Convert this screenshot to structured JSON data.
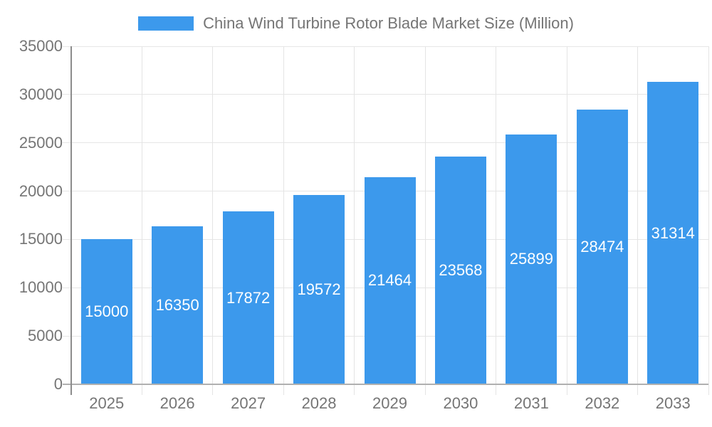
{
  "chart_data": {
    "type": "bar",
    "title": "China Wind Turbine Rotor Blade Market Size (Million)",
    "categories": [
      "2025",
      "2026",
      "2027",
      "2028",
      "2029",
      "2030",
      "2031",
      "2032",
      "2033"
    ],
    "values": [
      15000,
      16350,
      17872,
      19572,
      21464,
      23568,
      25899,
      28474,
      31314
    ],
    "xlabel": "",
    "ylabel": "",
    "ylim": [
      0,
      35000
    ],
    "ytick_step": 5000,
    "yticks": [
      0,
      5000,
      10000,
      15000,
      20000,
      25000,
      30000,
      35000
    ],
    "grid": true,
    "legend_position": "top-center",
    "value_labels": "inside-center",
    "bar_color": "#3c99ec",
    "value_label_color": "#ffffff",
    "axis_text_color": "#757575",
    "grid_color": "#e6e6e6"
  }
}
